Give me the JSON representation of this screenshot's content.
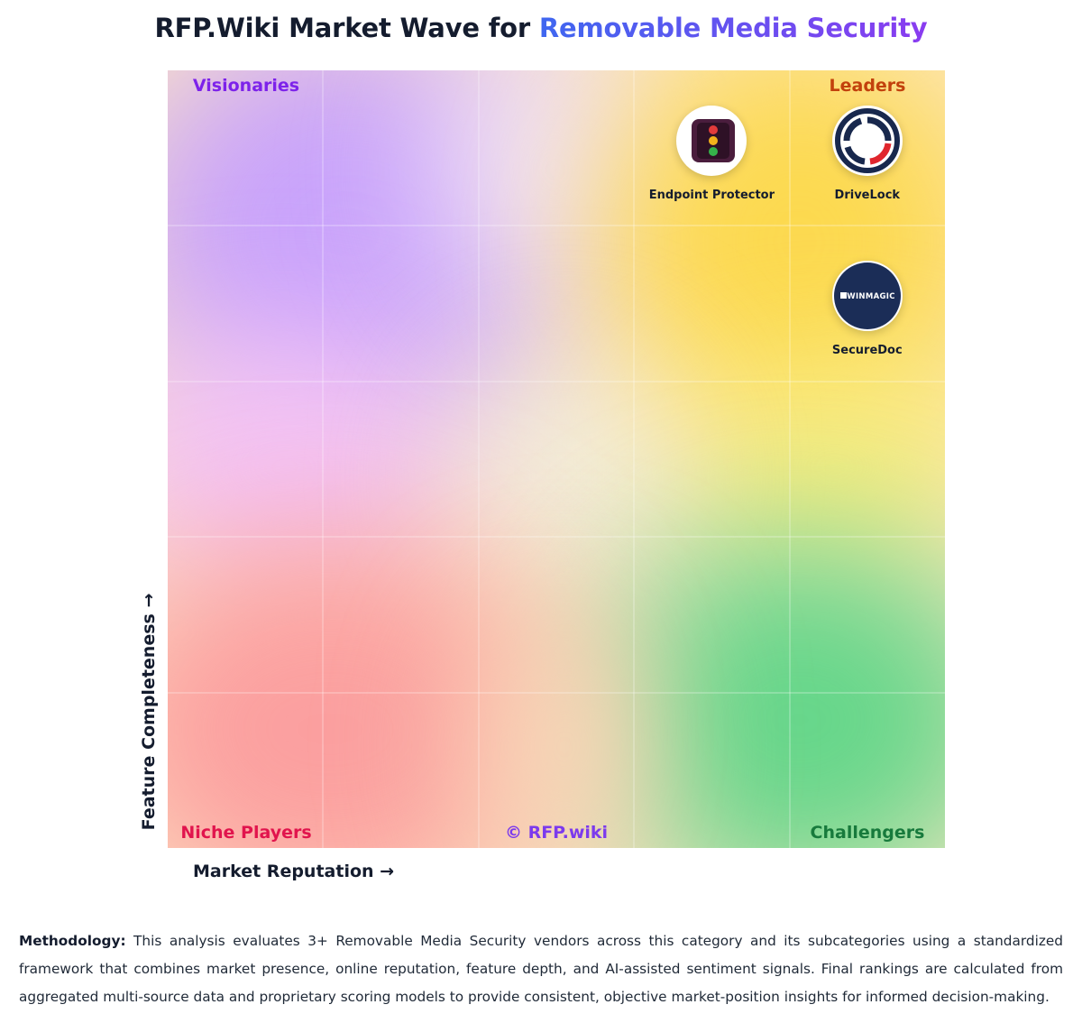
{
  "header": {
    "title_prefix": "RFP.Wiki Market Wave for ",
    "title_accent": "Removable Media Security"
  },
  "chart_data": {
    "type": "scatter",
    "title": "RFP.Wiki Market Wave for Removable Media Security",
    "xlabel": "Market Reputation →",
    "ylabel": "Feature Completeness →",
    "xlim": [
      0,
      100
    ],
    "ylim": [
      0,
      100
    ],
    "grid": true,
    "quadrants": {
      "top_left": "Visionaries",
      "top_right": "Leaders",
      "bottom_left": "Niche Players",
      "bottom_right": "Challengers"
    },
    "watermark": "© RFP.wiki",
    "points": [
      {
        "name": "Endpoint Protector",
        "x": 70,
        "y": 91,
        "logo": "traffic-light-icon"
      },
      {
        "name": "DriveLock",
        "x": 90,
        "y": 91,
        "logo": "drivelock-ring-logo"
      },
      {
        "name": "SecureDoc",
        "x": 90,
        "y": 71,
        "logo": "winmagic-logo",
        "logo_text": "WINMAGIC"
      }
    ],
    "colors": {
      "visionaries": "#c9a0fb",
      "leaders": "#fde047",
      "niche": "#f9a8a8",
      "challengers": "#5fd488"
    }
  },
  "methodology": {
    "label": "Methodology:",
    "text": " This analysis evaluates 3+ Removable Media Security vendors across this category and its subcategories using a standardized framework that combines market presence, online reputation, feature depth, and AI-assisted sentiment signals. Final rankings are calculated from aggregated multi-source data and proprietary scoring models to provide consistent, objective market-position insights for informed decision-making."
  }
}
